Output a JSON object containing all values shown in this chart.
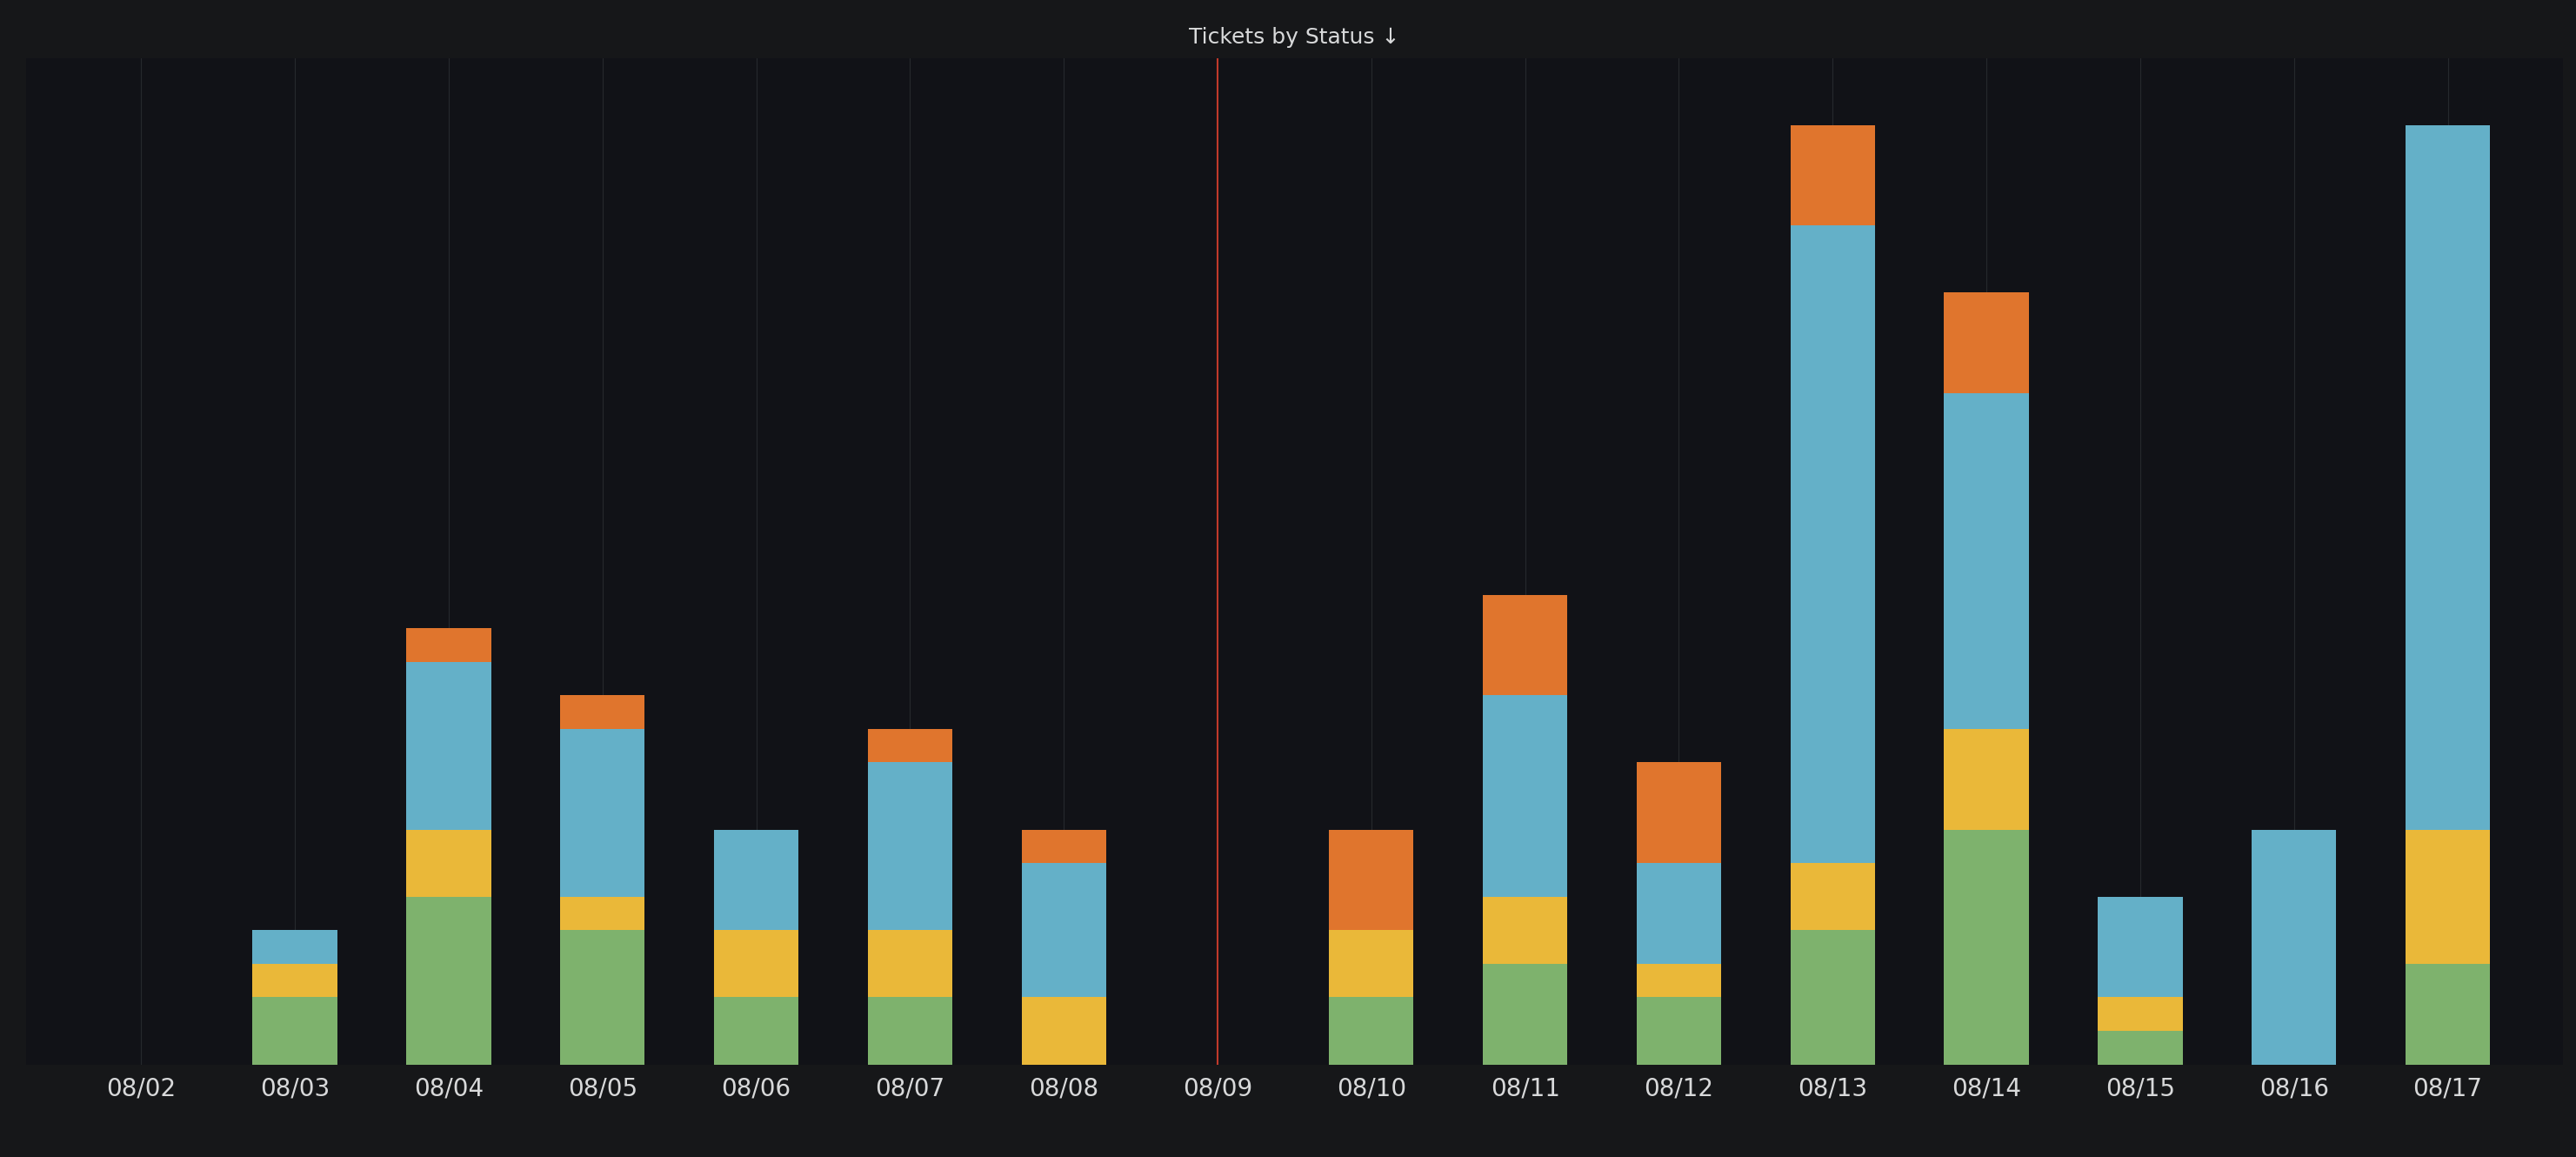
{
  "title": "Tickets by Status ↓",
  "background_color": "#161719",
  "plot_background_color": "#111217",
  "grid_color": "#2c2f33",
  "text_color": "#d8d9da",
  "categories": [
    "08/02",
    "08/03",
    "08/04",
    "08/05",
    "08/06",
    "08/07",
    "08/08",
    "08/09",
    "08/10",
    "08/11",
    "08/12",
    "08/13",
    "08/14",
    "08/15",
    "08/16",
    "08/17"
  ],
  "series": {
    "green": [
      0,
      2,
      5,
      4,
      2,
      2,
      0,
      0,
      2,
      3,
      2,
      4,
      7,
      1,
      0,
      3
    ],
    "yellow": [
      0,
      1,
      2,
      1,
      2,
      2,
      2,
      0,
      2,
      2,
      1,
      2,
      3,
      1,
      0,
      4
    ],
    "cyan": [
      0,
      1,
      5,
      5,
      3,
      5,
      4,
      0,
      0,
      6,
      3,
      19,
      10,
      3,
      7,
      21
    ],
    "orange": [
      0,
      0,
      1,
      1,
      0,
      1,
      1,
      0,
      3,
      3,
      3,
      3,
      3,
      0,
      0,
      0
    ]
  },
  "colors": {
    "green": "#7eb26d",
    "yellow": "#eab839",
    "cyan": "#64b0c8",
    "orange": "#e0752d"
  },
  "vline_x": "08/09",
  "vline_color": "#c0392b",
  "bar_width": 0.55,
  "ylim": [
    0,
    30
  ],
  "n_gridlines": 5
}
